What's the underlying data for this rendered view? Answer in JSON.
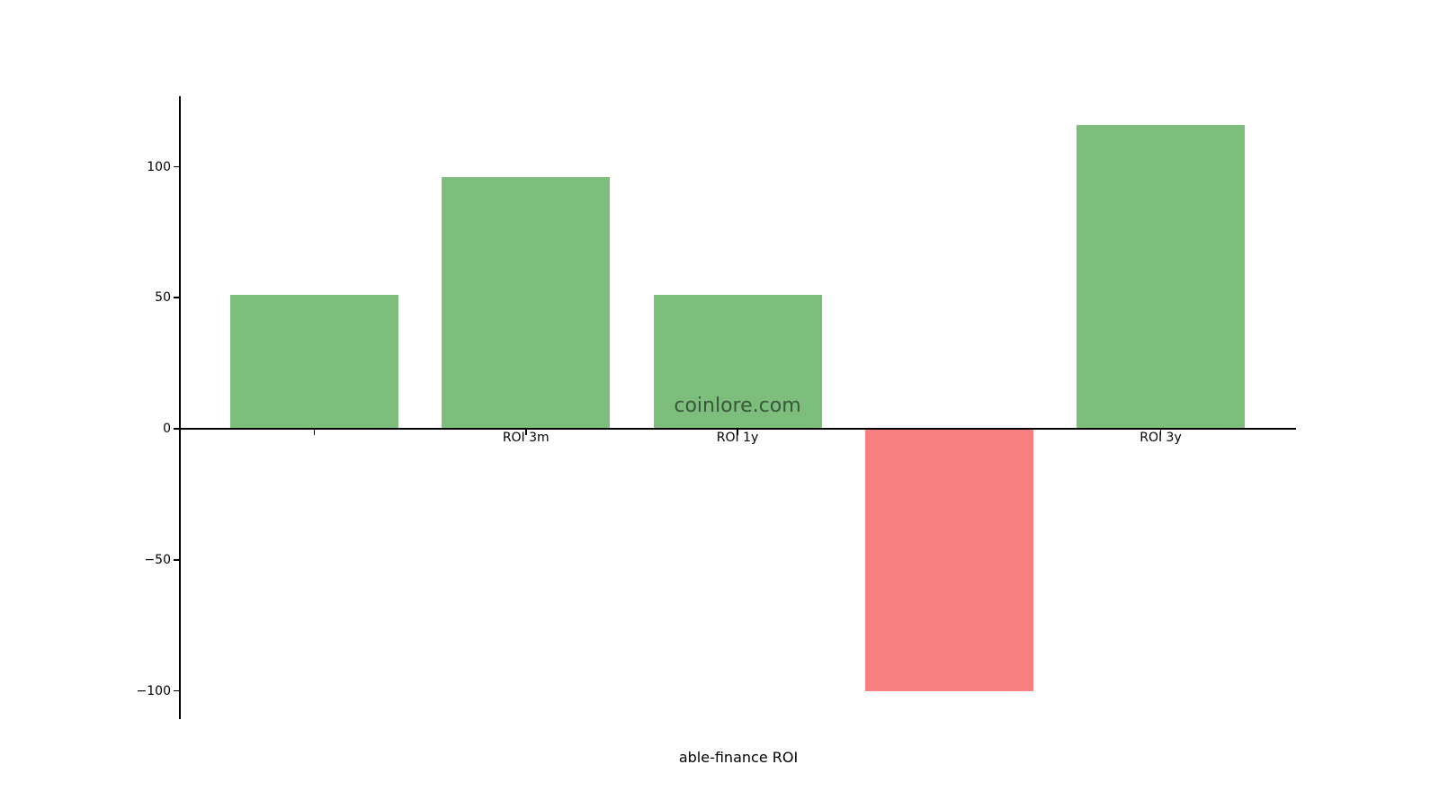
{
  "chart_data": {
    "type": "bar",
    "xlabel": "able-finance ROI",
    "watermark": "coinlore.com",
    "categories": [
      "",
      "ROI 3m",
      "ROI 1y",
      "",
      "ROI 3y"
    ],
    "values": [
      51,
      96,
      51,
      -100,
      116
    ],
    "bar_colors": [
      "#7dbe7d",
      "#7dbe7d",
      "#7dbe7d",
      "#f98080",
      "#7dbe7d"
    ],
    "positive_color": "#7dbe7d",
    "negative_color": "#f98080",
    "yticks": [
      100,
      50,
      0,
      -50,
      -100
    ],
    "ytick_labels": [
      "100",
      "50",
      "0",
      "−50",
      "−100"
    ],
    "ylim": [
      -111,
      127
    ],
    "grid": false,
    "legend_position": "none",
    "axis_color": "#000000",
    "text_color": "#000000"
  }
}
